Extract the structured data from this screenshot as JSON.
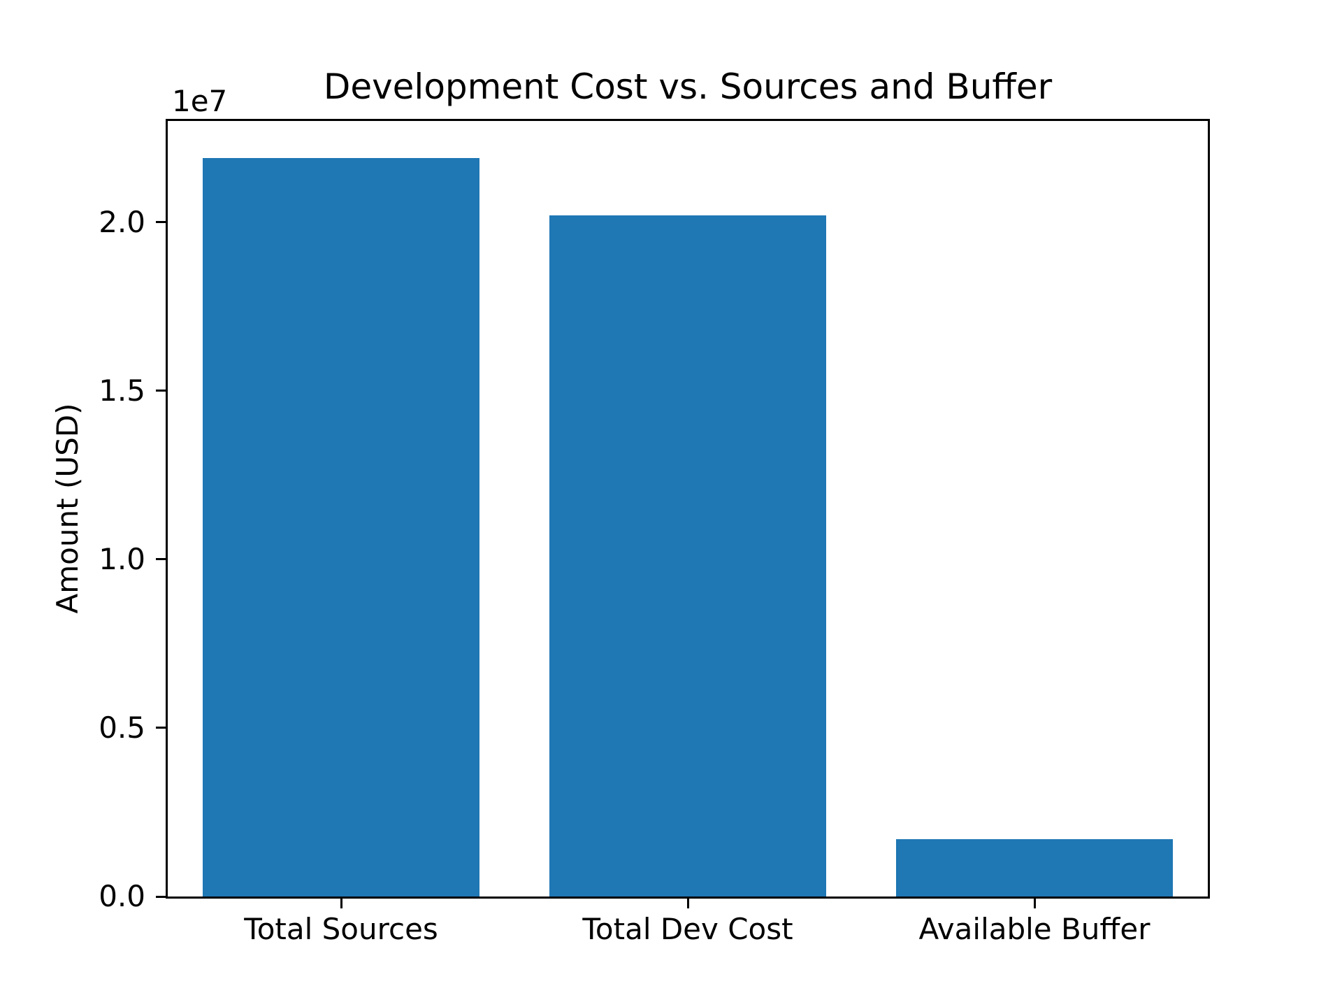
{
  "chart_data": {
    "type": "bar",
    "title": "Development Cost vs. Sources and Buffer",
    "ylabel": "Amount (USD)",
    "xlabel": "",
    "offset_text": "1e7",
    "categories": [
      "Total Sources",
      "Total Dev Cost",
      "Available Buffer"
    ],
    "values": [
      21900000,
      20200000,
      1700000
    ],
    "ylim": [
      0,
      23000000
    ],
    "yticks": [
      0,
      5000000,
      10000000,
      15000000,
      20000000
    ],
    "ytick_labels": [
      "0.0",
      "0.5",
      "1.0",
      "1.5",
      "2.0"
    ],
    "bar_color": "#1f77b4",
    "bar_width_frac": 0.8,
    "grid": false,
    "legend": null,
    "background_color": "#ffffff",
    "spine_color": "#000000"
  }
}
